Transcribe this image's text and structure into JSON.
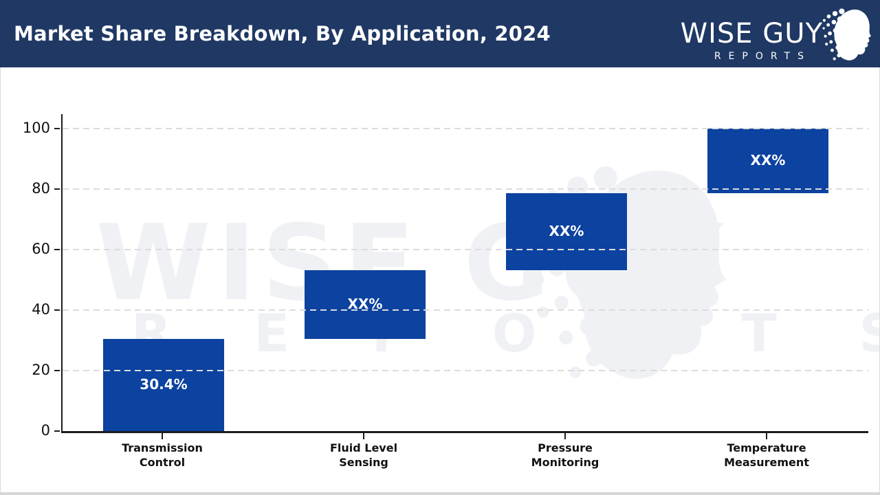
{
  "header": {
    "title": "Market Share Breakdown, By Application, 2024",
    "logo": {
      "wordmark": "WISE GUY",
      "reports": "REPORTS"
    }
  },
  "watermark": {
    "line1": "WISE GUY",
    "line2": "REPORTS"
  },
  "chart_data": {
    "type": "bar",
    "subtype": "waterfall-floating-bars",
    "title": "Market Share Breakdown, By Application, 2024",
    "categories": [
      [
        "Transmission",
        "Control"
      ],
      [
        "Fluid Level",
        "Sensing"
      ],
      [
        "Pressure",
        "Monitoring"
      ],
      [
        "Temperature",
        "Measurement"
      ]
    ],
    "segments": [
      {
        "category": "Transmission Control",
        "start": 0,
        "end": 30.4,
        "label": "30.4%"
      },
      {
        "category": "Fluid Level Sensing",
        "start": 30.4,
        "end": 53.2,
        "label": "XX%"
      },
      {
        "category": "Pressure Monitoring",
        "start": 53.2,
        "end": 78.6,
        "label": "XX%"
      },
      {
        "category": "Temperature Measurement",
        "start": 78.6,
        "end": 100,
        "label": "XX%"
      }
    ],
    "ylim": [
      0,
      100
    ],
    "yticks": [
      0,
      20,
      40,
      60,
      80,
      100
    ],
    "ytick_labels": [
      "0",
      "20",
      "40",
      "60",
      "80",
      "100"
    ],
    "grid": true,
    "legend": "none",
    "bar_color": "#0c42a0",
    "label_color": "#ffffff"
  },
  "colors": {
    "header_bg": "#1f3864",
    "bar": "#0c42a0",
    "gridline": "#dcdcdc",
    "axis": "#1c1c1c",
    "watermark": "#f0f1f4",
    "bottom_strip": "#d6d6d6"
  }
}
